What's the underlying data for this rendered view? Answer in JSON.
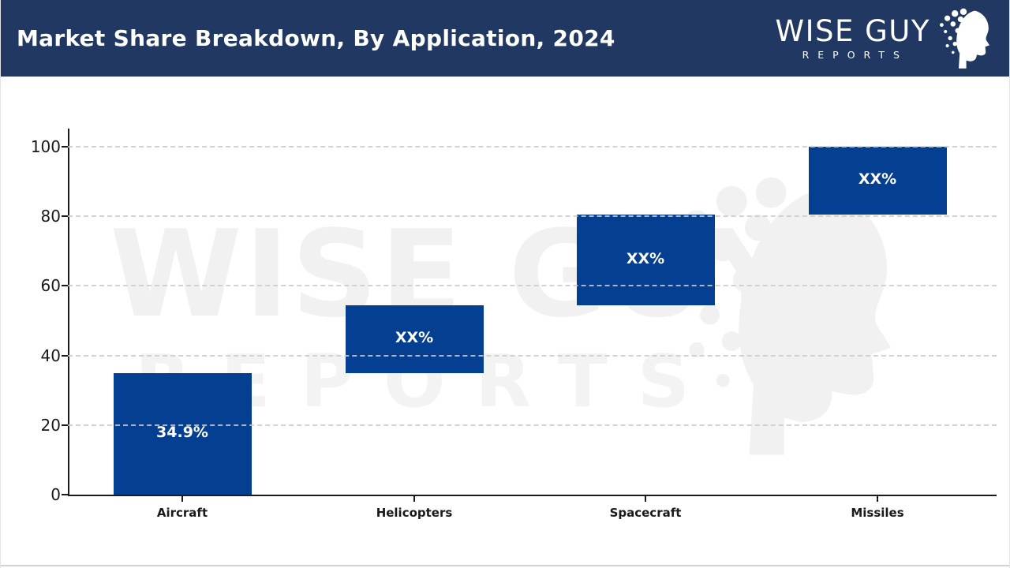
{
  "header": {
    "title": "Market Share Breakdown, By Application, 2024",
    "bg_color": "#213862",
    "logo": {
      "line1": "WISE GUY",
      "line2": "REPORTS"
    }
  },
  "watermark": {
    "line1": "WISE GUY",
    "line2": "REPORTS"
  },
  "chart_data": {
    "type": "bar",
    "subtype": "waterfall-floating-bars",
    "title": "Market Share Breakdown, By Application, 2024",
    "categories": [
      "Aircraft",
      "Helicopters",
      "Spacecraft",
      "Missiles"
    ],
    "segments": [
      {
        "category": "Aircraft",
        "start": 0,
        "end": 34.9,
        "label": "34.9%"
      },
      {
        "category": "Helicopters",
        "start": 34.9,
        "end": 54.4,
        "label": "XX%"
      },
      {
        "category": "Spacecraft",
        "start": 54.4,
        "end": 80.5,
        "label": "XX%"
      },
      {
        "category": "Missiles",
        "start": 80.5,
        "end": 100,
        "label": "XX%"
      }
    ],
    "xlabel": "",
    "ylabel": "",
    "ylim": [
      0,
      100
    ],
    "yticks": [
      "0",
      "20",
      "40",
      "60",
      "80",
      "100"
    ],
    "grid": "horizontal dashed, drawn over bars",
    "legend": "none",
    "bar_color": "#043f92",
    "bar_label_color": "#ffffff",
    "grid_color": "#cbcbcb",
    "axis_color": "#1a1a1a"
  }
}
